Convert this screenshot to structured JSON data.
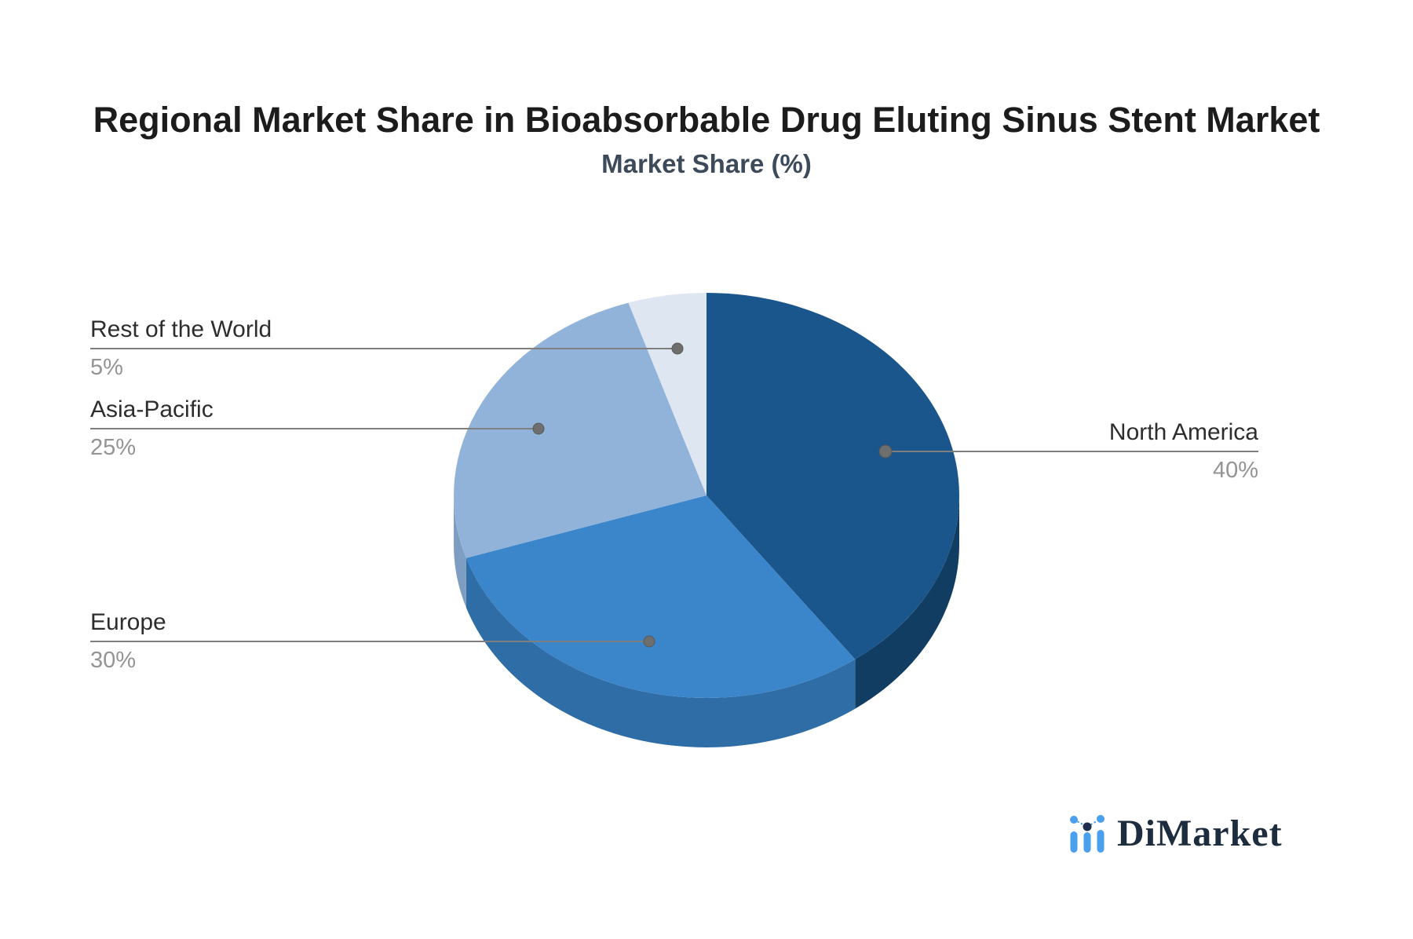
{
  "title": "Regional Market Share in Bioabsorbable Drug Eluting Sinus Stent Market",
  "subtitle": "Market Share (%)",
  "logo": {
    "text": "DiMarket",
    "icon": "bar-chart-logo-icon",
    "icon_color": "#4aa0ef",
    "icon_accent_color": "#1f2d4e",
    "text_color": "#1d2c3e"
  },
  "style_colors": {
    "leader_line": "#7f7f7f",
    "leader_dot": "#6e6e6e",
    "label_text": "#2d2d2d",
    "percent_text": "#949494",
    "title_text": "#1c1c1c",
    "subtitle_text": "#3c4a5a",
    "background": "#ffffff"
  },
  "chart_data": {
    "type": "pie",
    "title": "Regional Market Share in Bioabsorbable Drug Eluting Sinus Stent Market",
    "subtitle": "Market Share (%)",
    "unit": "%",
    "effect": "3d",
    "start_angle_deg": 0,
    "direction": "clockwise",
    "legend": "none",
    "slices": [
      {
        "label": "North America",
        "value": 40,
        "percent_label": "40%",
        "color": "#1a568c",
        "side_color": "#123d63"
      },
      {
        "label": "Europe",
        "value": 30,
        "percent_label": "30%",
        "color": "#3b86ca",
        "side_color": "#2e6da6"
      },
      {
        "label": "Asia-Pacific",
        "value": 25,
        "percent_label": "25%",
        "color": "#92b3d9",
        "side_color": "#7e9dc2"
      },
      {
        "label": "Rest of the World",
        "value": 5,
        "percent_label": "5%",
        "color": "#dde6f1",
        "side_color": "#c9d5e6"
      }
    ]
  }
}
